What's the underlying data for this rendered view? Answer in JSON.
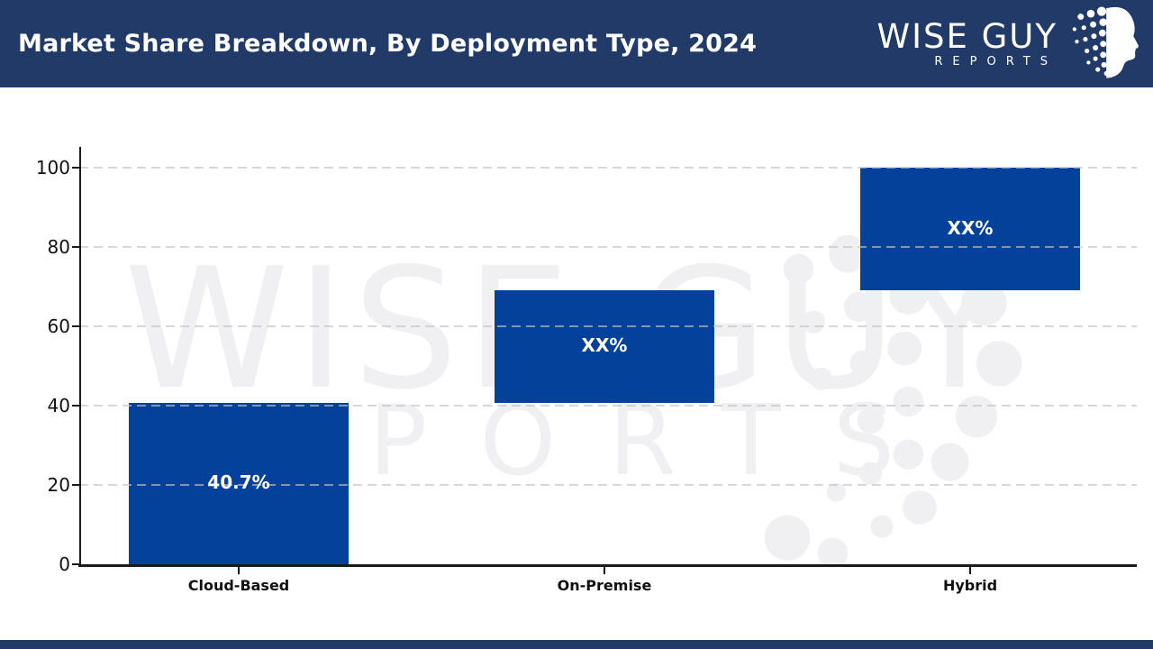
{
  "header": {
    "title": "Market Share Breakdown, By Deployment Type, 2024",
    "logo": {
      "line1": "WISE GUY",
      "line2": "REPORTS"
    }
  },
  "watermark": {
    "line1": "WISE GUY",
    "line2": "REPORTS"
  },
  "chart_data": {
    "type": "bar",
    "subtype": "floating-waterfall",
    "title": "Market Share Breakdown, By Deployment Type, 2024",
    "categories": [
      "Cloud-Based",
      "On-Premise",
      "Hybrid"
    ],
    "segments": [
      {
        "category": "Cloud-Based",
        "start": 0,
        "end": 40.7,
        "value": 40.7,
        "label": "40.7%"
      },
      {
        "category": "On-Premise",
        "start": 40.7,
        "end": 69.2,
        "value": 28.5,
        "label": "XX%"
      },
      {
        "category": "Hybrid",
        "start": 69.2,
        "end": 100,
        "value": 30.8,
        "label": "XX%"
      }
    ],
    "xlabel": "",
    "ylabel": "",
    "ylim": [
      0,
      100
    ],
    "yticks": [
      0,
      20,
      40,
      60,
      80,
      100
    ],
    "grid": true,
    "grid_style": "dashed",
    "legend": "none"
  },
  "colors": {
    "header_navy": "#213a67",
    "bar_blue": "#04419a",
    "bar_label": "#ffffff",
    "axis": "#1a1a1a",
    "gridline": "#c9c9c9",
    "watermark": "#f0f0f2",
    "background": "#ffffff"
  }
}
